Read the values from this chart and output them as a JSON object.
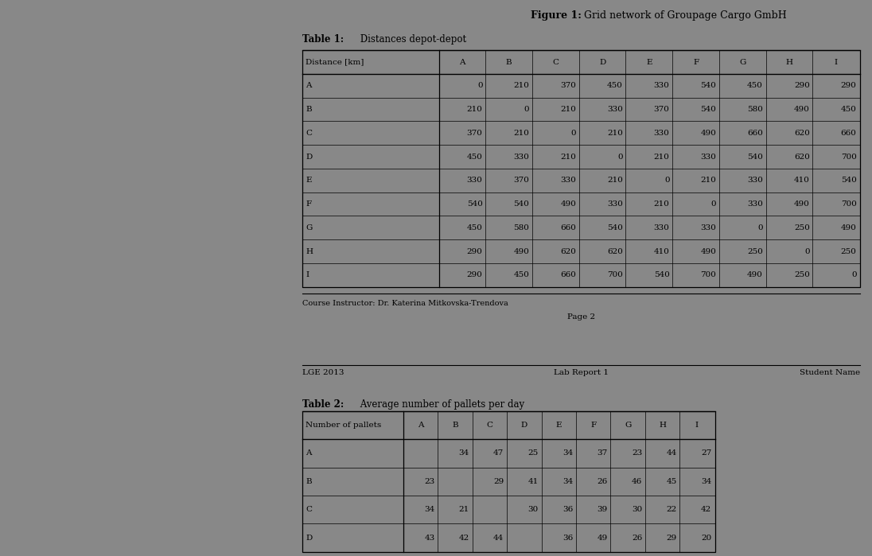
{
  "figure_title_bold": "Figure 1:",
  "figure_title_normal": " Grid network of Groupage Cargo GmbH",
  "table1_title_bold": "Table 1:",
  "table1_title_normal": " Distances depot-depot",
  "table1_col_header": [
    "Distance [km]",
    "A",
    "B",
    "C",
    "D",
    "E",
    "F",
    "G",
    "H",
    "I"
  ],
  "table1_rows": [
    [
      "A",
      "0",
      "210",
      "370",
      "450",
      "330",
      "540",
      "450",
      "290",
      "290"
    ],
    [
      "B",
      "210",
      "0",
      "210",
      "330",
      "370",
      "540",
      "580",
      "490",
      "450"
    ],
    [
      "C",
      "370",
      "210",
      "0",
      "210",
      "330",
      "490",
      "660",
      "620",
      "660"
    ],
    [
      "D",
      "450",
      "330",
      "210",
      "0",
      "210",
      "330",
      "540",
      "620",
      "700"
    ],
    [
      "E",
      "330",
      "370",
      "330",
      "210",
      "0",
      "210",
      "330",
      "410",
      "540"
    ],
    [
      "F",
      "540",
      "540",
      "490",
      "330",
      "210",
      "0",
      "330",
      "490",
      "700"
    ],
    [
      "G",
      "450",
      "580",
      "660",
      "540",
      "330",
      "330",
      "0",
      "250",
      "490"
    ],
    [
      "H",
      "290",
      "490",
      "620",
      "620",
      "410",
      "490",
      "250",
      "0",
      "250"
    ],
    [
      "I",
      "290",
      "450",
      "660",
      "700",
      "540",
      "700",
      "490",
      "250",
      "0"
    ]
  ],
  "footer_left": "Course Instructor: Dr. Katerina Mitkovska-Trendova",
  "footer_center": "Page 2",
  "bg_left": "#5a5a5a",
  "sep_color": "#606060",
  "table2_title_bold": "Table 2:",
  "table2_title_normal": " Average number of pallets per day",
  "table2_col_header": [
    "Number of pallets",
    "A",
    "B",
    "C",
    "D",
    "E",
    "F",
    "G",
    "H",
    "I"
  ],
  "table2_rows": [
    [
      "A",
      "",
      "34",
      "47",
      "25",
      "34",
      "37",
      "23",
      "44",
      "27"
    ],
    [
      "B",
      "23",
      "",
      "29",
      "41",
      "34",
      "26",
      "46",
      "45",
      "34"
    ],
    [
      "C",
      "34",
      "21",
      "",
      "30",
      "36",
      "39",
      "30",
      "22",
      "42"
    ],
    [
      "D",
      "43",
      "42",
      "44",
      "",
      "36",
      "49",
      "26",
      "29",
      "20"
    ]
  ],
  "header2_left": "LGE 2013",
  "header2_center": "Lab Report 1",
  "header2_right": "Student Name"
}
